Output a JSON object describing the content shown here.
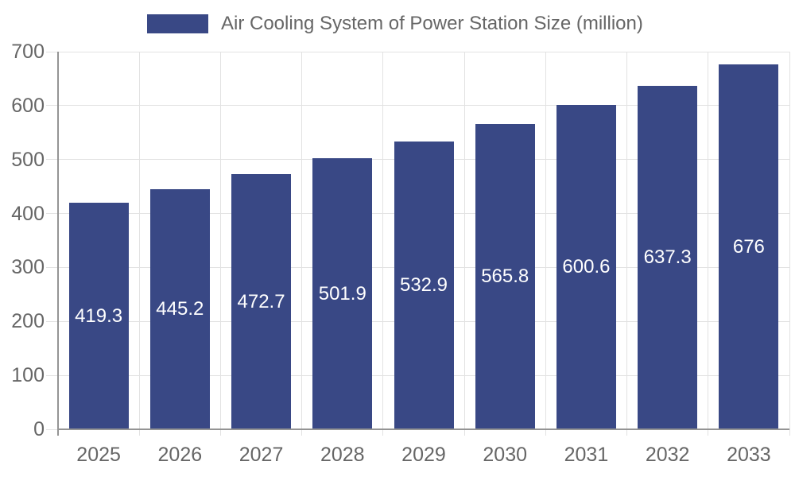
{
  "legend": {
    "label": "Air Cooling System of Power Station Size (million)",
    "swatch_color": "#394885"
  },
  "chart_data": {
    "type": "bar",
    "title": "Air Cooling System of Power Station Size (million)",
    "categories": [
      "2025",
      "2026",
      "2027",
      "2028",
      "2029",
      "2030",
      "2031",
      "2032",
      "2033"
    ],
    "series": [
      {
        "name": "Air Cooling System of Power Station Size (million)",
        "values": [
          419.3,
          445.2,
          472.7,
          501.9,
          532.9,
          565.8,
          600.6,
          637.3,
          676
        ]
      }
    ],
    "xlabel": "",
    "ylabel": "",
    "ylim": [
      0,
      700
    ],
    "yticks": [
      0,
      100,
      200,
      300,
      400,
      500,
      600,
      700
    ],
    "grid": true,
    "legend_position": "top-left",
    "value_label_position": "inside-center",
    "colors": {
      "bar": "#394885",
      "value_label": "#ffffff",
      "axis_label": "#666666",
      "title": "#666666",
      "grid_line": "#e2e2e2",
      "axis_line": "#949494",
      "background": "#ffffff"
    }
  }
}
